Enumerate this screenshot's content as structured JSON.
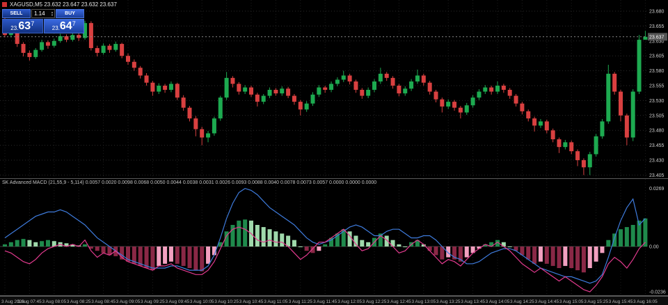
{
  "colors": {
    "bull": "#1daa50",
    "bear": "#d94040",
    "grid": "#2a2a2a",
    "vgrid": "#1d1d1d",
    "axis_text": "#cfcfcf",
    "separator": "#5a5a5a",
    "current_line": "#8a8a8a",
    "current_tag_bg": "#545454",
    "current_tag_text": "#ffffff",
    "hist_pos_up": "#1f8a4c",
    "hist_pos_down": "#9fd9ab",
    "hist_neg_down": "#8a2846",
    "hist_neg_up": "#f2a0c0",
    "zero_line": "#3c3c3c",
    "symbol_icon": "#d03030",
    "sell_btn_top": "#2b57c8",
    "sell_btn_bottom": "#12317e",
    "buy_btn_top": "#3b6ae0",
    "buy_btn_bottom": "#1a3f9e"
  },
  "header": {
    "symbol_line": "XAGUSD,M5  23.632 23.647 23.632 23.637"
  },
  "trade_panel": {
    "sell_label": "SELL",
    "buy_label": "BUY",
    "volume": "1.14",
    "icons": {
      "up": "▲",
      "down": "▼"
    },
    "sell_price": {
      "prefix": "23.",
      "big": "63",
      "sup": "7"
    },
    "buy_price": {
      "prefix": "23.",
      "big": "64",
      "sup": "7"
    }
  },
  "indicator": {
    "title": "SK Advanced MACD (21,55,9 - 5,114) 0.0057 0.0020 0.0098 0.0068 0.0050 0.0044 0.0038 0.0031 0.0026 0.0093 0.0088 0.0040 0.0078 0.0073 0.0057 0.0000 0.0000 0.0000"
  },
  "chart_data": [
    {
      "type": "candlestick",
      "title": "XAGUSD,M5",
      "symbol": "XAGUSD",
      "timeframe": "M5",
      "ohlc_header": {
        "open": "23.632",
        "high": "23.647",
        "low": "23.632",
        "close": "23.637"
      },
      "current_price": "23.637",
      "ylim": [
        23.405,
        23.68
      ],
      "grid": true,
      "y_ticks": [
        "23.680",
        "23.655",
        "23.630",
        "23.605",
        "23.580",
        "23.555",
        "23.530",
        "23.505",
        "23.480",
        "23.455",
        "23.430",
        "23.405"
      ],
      "x_ticks": [
        "3 Aug 2023",
        "3 Aug 07:45",
        "3 Aug 08:05",
        "3 Aug 08:25",
        "3 Aug 08:45",
        "3 Aug 09:05",
        "3 Aug 09:25",
        "3 Aug 09:45",
        "3 Aug 10:05",
        "3 Aug 10:25",
        "3 Aug 10:45",
        "3 Aug 11:05",
        "3 Aug 11:25",
        "3 Aug 11:45",
        "3 Aug 12:05",
        "3 Aug 12:25",
        "3 Aug 12:45",
        "3 Aug 13:05",
        "3 Aug 13:25",
        "3 Aug 13:45",
        "3 Aug 14:05",
        "3 Aug 14:25",
        "3 Aug 14:45",
        "3 Aug 15:05",
        "3 Aug 15:25",
        "3 Aug 15:45",
        "3 Aug 16:05"
      ],
      "candles_format": [
        "open",
        "high",
        "low",
        "close"
      ],
      "candles": [
        [
          23.662,
          23.672,
          23.636,
          23.64
        ],
        [
          23.64,
          23.654,
          23.636,
          23.65
        ],
        [
          23.65,
          23.653,
          23.62,
          23.625
        ],
        [
          23.625,
          23.628,
          23.604,
          23.61
        ],
        [
          23.61,
          23.614,
          23.597,
          23.603
        ],
        [
          23.603,
          23.618,
          23.6,
          23.615
        ],
        [
          23.615,
          23.632,
          23.612,
          23.628
        ],
        [
          23.628,
          23.631,
          23.617,
          23.622
        ],
        [
          23.622,
          23.634,
          23.619,
          23.63
        ],
        [
          23.63,
          23.642,
          23.627,
          23.638
        ],
        [
          23.638,
          23.641,
          23.628,
          23.632
        ],
        [
          23.632,
          23.644,
          23.629,
          23.64
        ],
        [
          23.64,
          23.643,
          23.63,
          23.635
        ],
        [
          23.635,
          23.664,
          23.632,
          23.66
        ],
        [
          23.66,
          23.663,
          23.614,
          23.618
        ],
        [
          23.618,
          23.622,
          23.604,
          23.61
        ],
        [
          23.61,
          23.626,
          23.607,
          23.622
        ],
        [
          23.622,
          23.625,
          23.61,
          23.615
        ],
        [
          23.615,
          23.629,
          23.612,
          23.625
        ],
        [
          23.625,
          23.627,
          23.601,
          23.605
        ],
        [
          23.605,
          23.609,
          23.59,
          23.595
        ],
        [
          23.595,
          23.599,
          23.58,
          23.585
        ],
        [
          23.585,
          23.588,
          23.567,
          23.572
        ],
        [
          23.572,
          23.576,
          23.555,
          23.56
        ],
        [
          23.56,
          23.563,
          23.538,
          23.545
        ],
        [
          23.545,
          23.559,
          23.541,
          23.555
        ],
        [
          23.555,
          23.558,
          23.543,
          23.548
        ],
        [
          23.548,
          23.562,
          23.544,
          23.558
        ],
        [
          23.558,
          23.56,
          23.531,
          23.535
        ],
        [
          23.535,
          23.539,
          23.513,
          23.518
        ],
        [
          23.518,
          23.521,
          23.495,
          23.5
        ],
        [
          23.5,
          23.504,
          23.47,
          23.482
        ],
        [
          23.482,
          23.486,
          23.455,
          23.468
        ],
        [
          23.468,
          23.479,
          23.46,
          23.475
        ],
        [
          23.475,
          23.503,
          23.471,
          23.5
        ],
        [
          23.5,
          23.538,
          23.496,
          23.535
        ],
        [
          23.535,
          23.578,
          23.531,
          23.568
        ],
        [
          23.568,
          23.571,
          23.552,
          23.558
        ],
        [
          23.558,
          23.561,
          23.54,
          23.545
        ],
        [
          23.545,
          23.556,
          23.541,
          23.552
        ],
        [
          23.552,
          23.555,
          23.536,
          23.54
        ],
        [
          23.54,
          23.543,
          23.52,
          23.528
        ],
        [
          23.528,
          23.541,
          23.524,
          23.538
        ],
        [
          23.538,
          23.552,
          23.534,
          23.548
        ],
        [
          23.548,
          23.551,
          23.538,
          23.542
        ],
        [
          23.542,
          23.554,
          23.538,
          23.55
        ],
        [
          23.55,
          23.553,
          23.534,
          23.538
        ],
        [
          23.538,
          23.541,
          23.523,
          23.528
        ],
        [
          23.528,
          23.531,
          23.505,
          23.515
        ],
        [
          23.515,
          23.529,
          23.511,
          23.525
        ],
        [
          23.525,
          23.544,
          23.521,
          23.54
        ],
        [
          23.54,
          23.556,
          23.536,
          23.552
        ],
        [
          23.552,
          23.555,
          23.543,
          23.548
        ],
        [
          23.548,
          23.562,
          23.544,
          23.558
        ],
        [
          23.558,
          23.569,
          23.554,
          23.565
        ],
        [
          23.565,
          23.58,
          23.561,
          23.572
        ],
        [
          23.572,
          23.575,
          23.557,
          23.562
        ],
        [
          23.562,
          23.565,
          23.543,
          23.548
        ],
        [
          23.548,
          23.551,
          23.533,
          23.538
        ],
        [
          23.538,
          23.552,
          23.534,
          23.548
        ],
        [
          23.548,
          23.566,
          23.544,
          23.562
        ],
        [
          23.562,
          23.585,
          23.558,
          23.575
        ],
        [
          23.575,
          23.578,
          23.563,
          23.568
        ],
        [
          23.568,
          23.571,
          23.55,
          23.555
        ],
        [
          23.555,
          23.558,
          23.537,
          23.542
        ],
        [
          23.542,
          23.554,
          23.538,
          23.55
        ],
        [
          23.55,
          23.566,
          23.546,
          23.562
        ],
        [
          23.562,
          23.582,
          23.558,
          23.572
        ],
        [
          23.572,
          23.575,
          23.555,
          23.56
        ],
        [
          23.56,
          23.563,
          23.54,
          23.545
        ],
        [
          23.545,
          23.548,
          23.527,
          23.532
        ],
        [
          23.532,
          23.535,
          23.51,
          23.52
        ],
        [
          23.52,
          23.532,
          23.516,
          23.528
        ],
        [
          23.528,
          23.531,
          23.513,
          23.518
        ],
        [
          23.518,
          23.521,
          23.5,
          23.51
        ],
        [
          23.51,
          23.526,
          23.506,
          23.522
        ],
        [
          23.522,
          23.539,
          23.518,
          23.535
        ],
        [
          23.535,
          23.549,
          23.531,
          23.545
        ],
        [
          23.545,
          23.556,
          23.541,
          23.552
        ],
        [
          23.552,
          23.555,
          23.54,
          23.545
        ],
        [
          23.545,
          23.562,
          23.541,
          23.555
        ],
        [
          23.555,
          23.558,
          23.543,
          23.548
        ],
        [
          23.548,
          23.551,
          23.533,
          23.538
        ],
        [
          23.538,
          23.541,
          23.52,
          23.525
        ],
        [
          23.525,
          23.528,
          23.507,
          23.512
        ],
        [
          23.512,
          23.515,
          23.495,
          23.5
        ],
        [
          23.5,
          23.503,
          23.478,
          23.488
        ],
        [
          23.488,
          23.499,
          23.484,
          23.495
        ],
        [
          23.495,
          23.498,
          23.475,
          23.48
        ],
        [
          23.48,
          23.483,
          23.46,
          23.465
        ],
        [
          23.465,
          23.468,
          23.442,
          23.452
        ],
        [
          23.452,
          23.464,
          23.448,
          23.46
        ],
        [
          23.46,
          23.463,
          23.44,
          23.445
        ],
        [
          23.445,
          23.448,
          23.42,
          23.43
        ],
        [
          23.43,
          23.433,
          23.405,
          23.418
        ],
        [
          23.418,
          23.444,
          23.405,
          23.44
        ],
        [
          23.44,
          23.474,
          23.436,
          23.47
        ],
        [
          23.47,
          23.499,
          23.466,
          23.495
        ],
        [
          23.495,
          23.59,
          23.491,
          23.575
        ],
        [
          23.575,
          23.578,
          23.54,
          23.545
        ],
        [
          23.545,
          23.548,
          23.495,
          23.505
        ],
        [
          23.505,
          23.508,
          23.455,
          23.468
        ],
        [
          23.468,
          23.549,
          23.462,
          23.545
        ],
        [
          23.545,
          23.64,
          23.541,
          23.632
        ],
        [
          23.632,
          23.647,
          23.632,
          23.637
        ]
      ]
    },
    {
      "type": "bar",
      "title": "SK Advanced MACD",
      "ylim": [
        -0.0236,
        0.0269
      ],
      "y_tick_labels": [
        "0.0269",
        "0.00",
        "-0.0236"
      ],
      "histogram": [
        0.001,
        0.002,
        0.003,
        0.0035,
        0.003,
        0.002,
        0.0025,
        0.003,
        0.0025,
        0.002,
        0.0015,
        0.001,
        0.0005,
        0.001,
        -0.001,
        -0.002,
        -0.003,
        -0.004,
        -0.0045,
        -0.006,
        -0.007,
        -0.008,
        -0.009,
        -0.01,
        -0.011,
        -0.009,
        -0.008,
        -0.007,
        -0.008,
        -0.009,
        -0.01,
        -0.011,
        -0.0115,
        -0.008,
        -0.004,
        0.002,
        0.007,
        0.01,
        0.012,
        0.0125,
        0.012,
        0.01,
        0.009,
        0.008,
        0.007,
        0.006,
        0.005,
        0.003,
        0.0,
        -0.002,
        -0.003,
        -0.002,
        0.001,
        0.004,
        0.006,
        0.008,
        0.007,
        0.005,
        0.003,
        0.002,
        0.004,
        0.006,
        0.005,
        0.003,
        0.001,
        0.0,
        0.002,
        0.003,
        0.001,
        -0.002,
        -0.004,
        -0.006,
        -0.005,
        -0.006,
        -0.007,
        -0.005,
        -0.003,
        -0.001,
        0.001,
        0.002,
        0.003,
        0.002,
        0.0,
        -0.002,
        -0.004,
        -0.006,
        -0.008,
        -0.007,
        -0.008,
        -0.009,
        -0.01,
        -0.009,
        -0.01,
        -0.011,
        -0.012,
        -0.01,
        -0.007,
        -0.003,
        0.003,
        0.006,
        0.008,
        0.009,
        0.01,
        0.012,
        0.013
      ],
      "series": [
        {
          "name": "macd-line-blue",
          "color": "#3e7bdc",
          "values": [
            0.004,
            0.006,
            0.008,
            0.01,
            0.012,
            0.014,
            0.015,
            0.016,
            0.016,
            0.017,
            0.016,
            0.014,
            0.012,
            0.01,
            0.007,
            0.004,
            0.002,
            0.0,
            -0.002,
            -0.004,
            -0.006,
            -0.007,
            -0.008,
            -0.009,
            -0.01,
            -0.01,
            -0.01,
            -0.009,
            -0.009,
            -0.01,
            -0.011,
            -0.011,
            -0.011,
            -0.009,
            -0.004,
            0.004,
            0.013,
            0.02,
            0.025,
            0.0269,
            0.026,
            0.024,
            0.021,
            0.018,
            0.016,
            0.014,
            0.012,
            0.01,
            0.007,
            0.004,
            0.002,
            0.001,
            0.002,
            0.003,
            0.005,
            0.007,
            0.009,
            0.01,
            0.009,
            0.007,
            0.005,
            0.005,
            0.007,
            0.008,
            0.008,
            0.006,
            0.004,
            0.004,
            0.005,
            0.005,
            0.003,
            0.0,
            -0.003,
            -0.005,
            -0.006,
            -0.008,
            -0.008,
            -0.007,
            -0.005,
            -0.003,
            -0.002,
            -0.001,
            -0.001,
            -0.002,
            -0.004,
            -0.006,
            -0.008,
            -0.01,
            -0.011,
            -0.012,
            -0.013,
            -0.014,
            -0.014,
            -0.015,
            -0.016,
            -0.017,
            -0.016,
            -0.013,
            -0.005,
            0.004,
            0.012,
            0.018,
            0.022,
            0.01,
            0.013
          ]
        },
        {
          "name": "macd-line-magenta",
          "color": "#e23a8e",
          "values": [
            -0.002,
            -0.003,
            -0.005,
            -0.007,
            -0.008,
            -0.006,
            -0.003,
            -0.001,
            0.0,
            0.001,
            0.0,
            0.001,
            0.0,
            0.003,
            -0.002,
            -0.005,
            -0.003,
            -0.004,
            -0.002,
            -0.005,
            -0.007,
            -0.008,
            -0.009,
            -0.01,
            -0.011,
            -0.009,
            -0.009,
            -0.008,
            -0.01,
            -0.011,
            -0.012,
            -0.013,
            -0.013,
            -0.011,
            -0.007,
            -0.001,
            0.005,
            0.008,
            0.009,
            0.008,
            0.006,
            0.003,
            0.002,
            0.003,
            0.002,
            0.002,
            0.0,
            -0.003,
            -0.006,
            -0.004,
            -0.001,
            0.002,
            0.002,
            0.004,
            0.006,
            0.008,
            0.005,
            0.001,
            -0.002,
            -0.001,
            0.002,
            0.005,
            0.003,
            0.0,
            -0.003,
            -0.002,
            0.001,
            0.003,
            0.001,
            -0.002,
            -0.005,
            -0.008,
            -0.006,
            -0.007,
            -0.009,
            -0.006,
            -0.003,
            -0.001,
            0.001,
            0.0,
            0.002,
            0.0,
            -0.002,
            -0.005,
            -0.008,
            -0.01,
            -0.012,
            -0.01,
            -0.012,
            -0.014,
            -0.016,
            -0.014,
            -0.016,
            -0.018,
            -0.02,
            -0.021,
            -0.018,
            -0.014,
            -0.008,
            -0.005,
            -0.007,
            -0.01,
            -0.006,
            -0.001,
            0.002
          ]
        }
      ]
    }
  ]
}
